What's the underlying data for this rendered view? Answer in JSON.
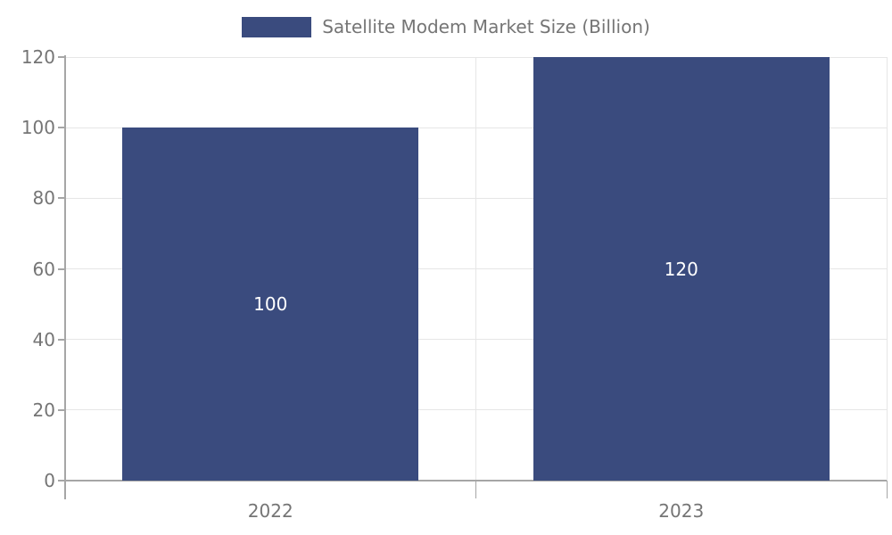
{
  "chart_data": {
    "type": "bar",
    "title": "",
    "legend": "Satellite Modem Market Size (Billion)",
    "legend_position": "top-center",
    "categories": [
      "2022",
      "2023"
    ],
    "series": [
      {
        "name": "Satellite Modem Market Size (Billion)",
        "values": [
          100,
          120
        ]
      }
    ],
    "value_labels": [
      "100",
      "120"
    ],
    "xlabel": "",
    "ylabel": "",
    "ylim": [
      0,
      120
    ],
    "yticks": [
      0,
      20,
      40,
      60,
      80,
      100,
      120
    ],
    "grid": true,
    "colors": {
      "bar": "#3A4B7E",
      "axis": "#a6a6a6",
      "grid": "#e6e6e6",
      "tick_label": "#757575",
      "value_label": "#ffffff",
      "background": "#ffffff"
    }
  }
}
